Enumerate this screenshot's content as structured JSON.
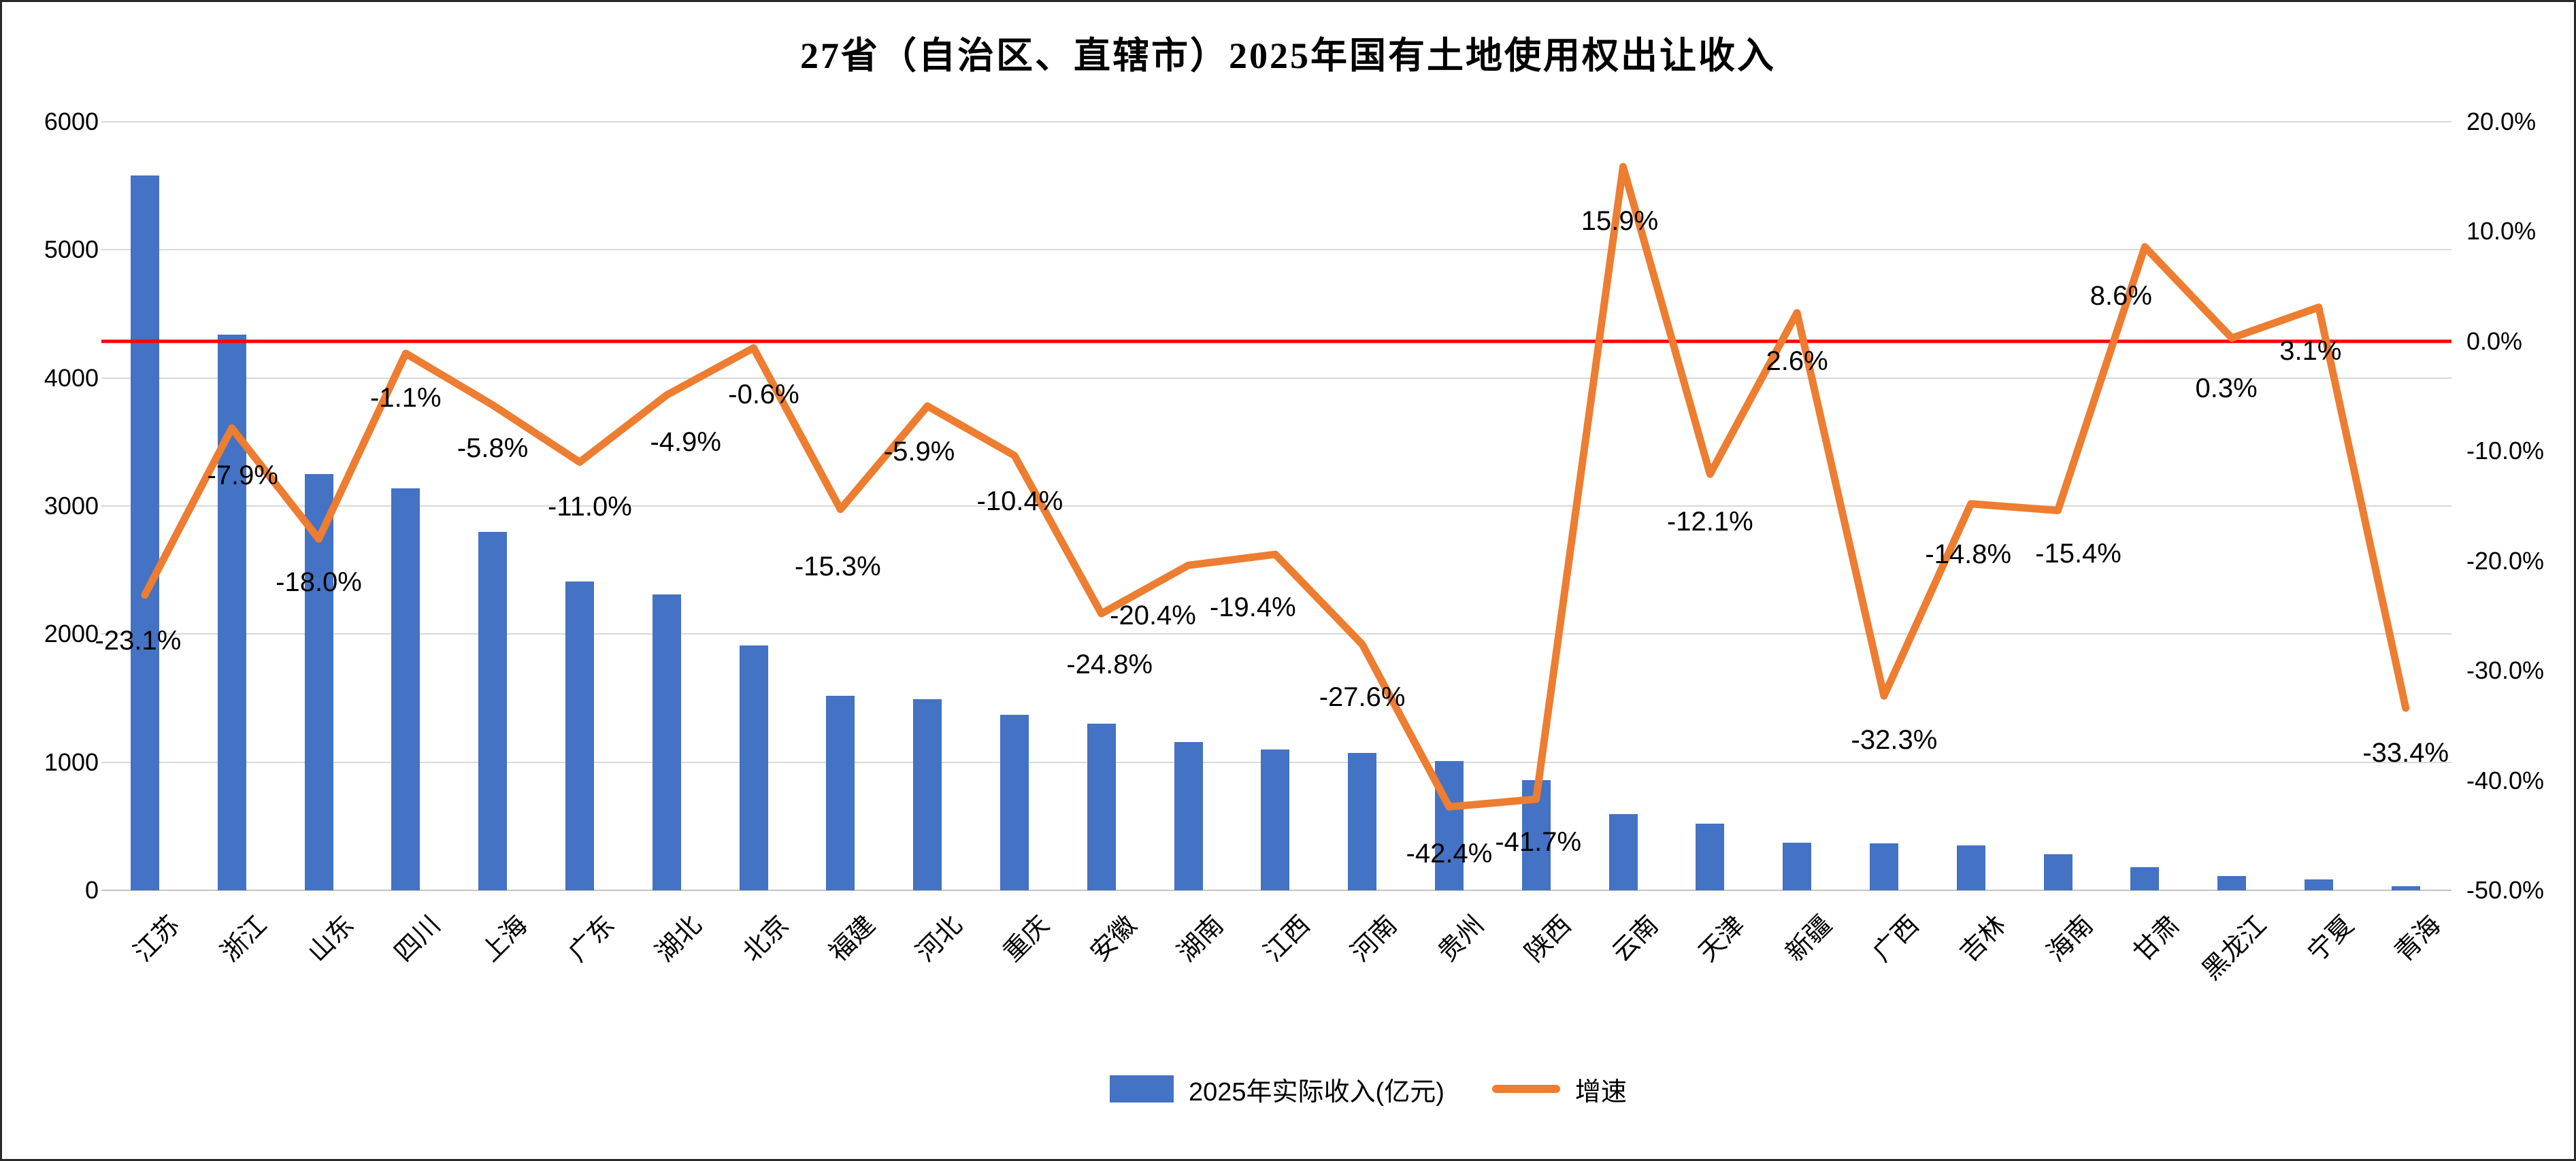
{
  "title": "27省（自治区、直辖市）2025年国有土地使用权出让收入",
  "legend": {
    "bar_label": "2025年实际收入(亿元)",
    "line_label": "增速"
  },
  "colors": {
    "bar": "#4472c4",
    "line": "#ed7d31",
    "reference_line": "#ff0000",
    "gridline": "#d9d9d9",
    "text": "#000000",
    "background": "#ffffff"
  },
  "chart_data": {
    "type": "bar",
    "combo": "bar+line",
    "title": "27省（自治区、直辖市）2025年国有土地使用权出让收入",
    "categories": [
      "江苏",
      "浙江",
      "山东",
      "四川",
      "上海",
      "广东",
      "湖北",
      "北京",
      "福建",
      "河北",
      "重庆",
      "安徽",
      "湖南",
      "江西",
      "河南",
      "贵州",
      "陕西",
      "云南",
      "天津",
      "新疆",
      "广西",
      "吉林",
      "海南",
      "甘肃",
      "黑龙江",
      "宁夏",
      "青海"
    ],
    "series": [
      {
        "name": "2025年实际收入(亿元)",
        "type": "bar",
        "axis": "left",
        "color": "#4472c4",
        "values": [
          5580,
          4340,
          3250,
          3140,
          2800,
          2410,
          2310,
          1910,
          1520,
          1490,
          1370,
          1300,
          1160,
          1100,
          1070,
          1010,
          860,
          595,
          520,
          370,
          365,
          350,
          280,
          180,
          110,
          85,
          30
        ]
      },
      {
        "name": "增速",
        "type": "line",
        "axis": "right",
        "color": "#ed7d31",
        "values": [
          -23.1,
          -7.9,
          -18.0,
          -1.1,
          -5.8,
          -11.0,
          -4.9,
          -0.6,
          -15.3,
          -5.9,
          -10.4,
          -24.8,
          -20.4,
          -19.4,
          -27.6,
          -42.4,
          -41.7,
          15.9,
          -12.1,
          2.6,
          -32.3,
          -14.8,
          -15.4,
          8.6,
          0.3,
          3.1,
          -33.4
        ],
        "data_labels": [
          "-23.1%",
          "-7.9%",
          "-18.0%",
          "-1.1%",
          "-5.8%",
          "-11.0%",
          "-4.9%",
          "-0.6%",
          "-15.3%",
          "-5.9%",
          "-10.4%",
          "-24.8%",
          "-20.4%",
          "-19.4%",
          "-27.6%",
          "-42.4%",
          "-41.7%",
          "15.9%",
          "-12.1%",
          "2.6%",
          "-32.3%",
          "-14.8%",
          "-15.4%",
          "8.6%",
          "0.3%",
          "3.1%",
          "-33.4%"
        ]
      }
    ],
    "left_axis": {
      "min": 0,
      "max": 6000,
      "tick_labels": [
        "6000",
        "5000",
        "4000",
        "3000",
        "2000",
        "1000",
        "0"
      ]
    },
    "right_axis": {
      "min": -50,
      "max": 20,
      "tick_labels": [
        "20.0%",
        "10.0%",
        "0.0%",
        "-10.0%",
        "-20.0%",
        "-30.0%",
        "-40.0%",
        "-50.0%"
      ]
    },
    "reference_line": {
      "value_percent": 0.0,
      "color": "#ff0000"
    },
    "grid": true,
    "legend_position": "bottom",
    "xlabel": "",
    "ylabel": ""
  }
}
